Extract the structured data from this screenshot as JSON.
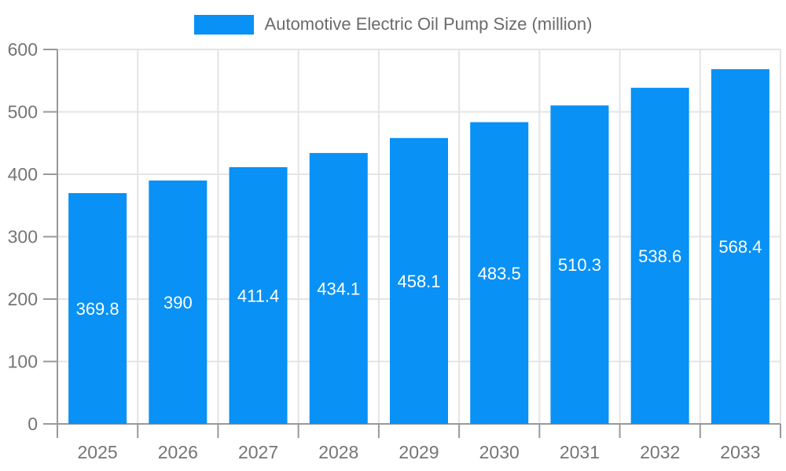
{
  "chart_data": {
    "type": "bar",
    "title": "Automotive Electric Oil Pump Size (million)",
    "legend_entries": [
      "Automotive Electric Oil Pump Size (million)"
    ],
    "legend_position": "top",
    "categories": [
      "2025",
      "2026",
      "2027",
      "2028",
      "2029",
      "2030",
      "2031",
      "2032",
      "2033"
    ],
    "values": [
      369.8,
      390,
      411.4,
      434.1,
      458.1,
      483.5,
      510.3,
      538.6,
      568.4
    ],
    "value_labels": [
      "369.8",
      "390",
      "411.4",
      "434.1",
      "458.1",
      "483.5",
      "510.3",
      "538.6",
      "568.4"
    ],
    "xlabel": "",
    "ylabel": "",
    "ylim": [
      0,
      600
    ],
    "yticks": [
      0,
      100,
      200,
      300,
      400,
      500,
      600
    ],
    "ytick_labels": [
      "0",
      "100",
      "200",
      "300",
      "400",
      "500",
      "600"
    ],
    "grid": true
  },
  "colors": {
    "bar": "#0991f5",
    "grid": "#e4e4e4",
    "axis": "#999999",
    "tick_label": "#757575",
    "legend_text": "#6b6b6b",
    "bar_label": "#ffffff",
    "background": "#ffffff"
  }
}
